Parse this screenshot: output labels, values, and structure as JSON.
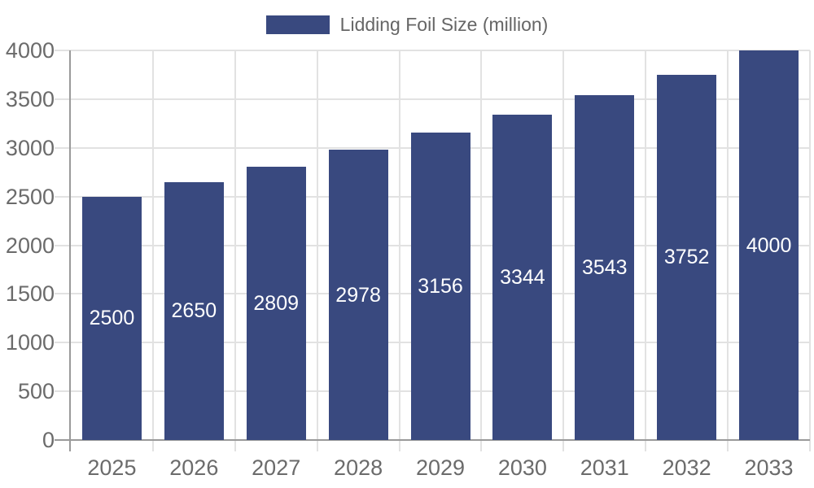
{
  "legend": {
    "label": "Lidding Foil Size (million)"
  },
  "colors": {
    "bar": "#39497F",
    "gridline": "#e2e2e2",
    "axis_line": "#9a9a9a",
    "tick_label": "#6b6b6b",
    "legend_text": "#666666",
    "value_label": "#ffffff",
    "background": "#ffffff"
  },
  "chart_data": {
    "type": "bar",
    "title": "",
    "series_name": "Lidding Foil Size (million)",
    "categories": [
      "2025",
      "2026",
      "2027",
      "2028",
      "2029",
      "2030",
      "2031",
      "2032",
      "2033"
    ],
    "values": [
      2500,
      2650,
      2809,
      2978,
      3156,
      3344,
      3543,
      3752,
      4000
    ],
    "xlabel": "",
    "ylabel": "",
    "ylim": [
      0,
      4000
    ],
    "yticks": [
      0,
      500,
      1000,
      1500,
      2000,
      2500,
      3000,
      3500,
      4000
    ],
    "grid": true,
    "legend_position": "top-center",
    "value_labels_position": "inside-center"
  }
}
